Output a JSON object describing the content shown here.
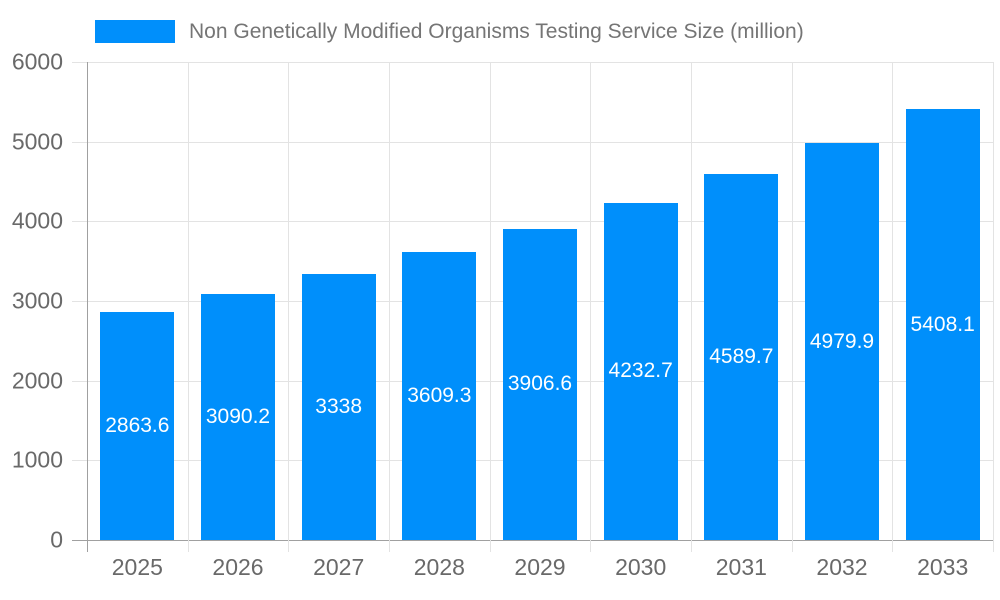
{
  "chart_data": {
    "type": "bar",
    "title": "",
    "xlabel": "",
    "ylabel": "",
    "categories": [
      "2025",
      "2026",
      "2027",
      "2028",
      "2029",
      "2030",
      "2031",
      "2032",
      "2033"
    ],
    "series": [
      {
        "name": "Non Genetically Modified Organisms Testing Service Size (million)",
        "values": [
          2863.6,
          3090.2,
          3338,
          3609.3,
          3906.6,
          4232.7,
          4589.7,
          4979.9,
          5408.1
        ]
      }
    ],
    "value_labels": [
      "2863.6",
      "3090.2",
      "3338",
      "3609.3",
      "3906.6",
      "4232.7",
      "4589.7",
      "4979.9",
      "5408.1"
    ],
    "ylim": [
      0,
      6000
    ],
    "yticks": [
      "0",
      "1000",
      "2000",
      "3000",
      "4000",
      "5000",
      "6000"
    ],
    "grid": true,
    "legend_position": "top-left",
    "colors": {
      "bar": "#008FFB",
      "value_label": "#FFFFFF",
      "axis_label": "#696969",
      "legend_text": "#757575",
      "gridline": "#E3E3E3",
      "axis_line": "#A0A0A0",
      "background": "#FFFFFF"
    }
  }
}
